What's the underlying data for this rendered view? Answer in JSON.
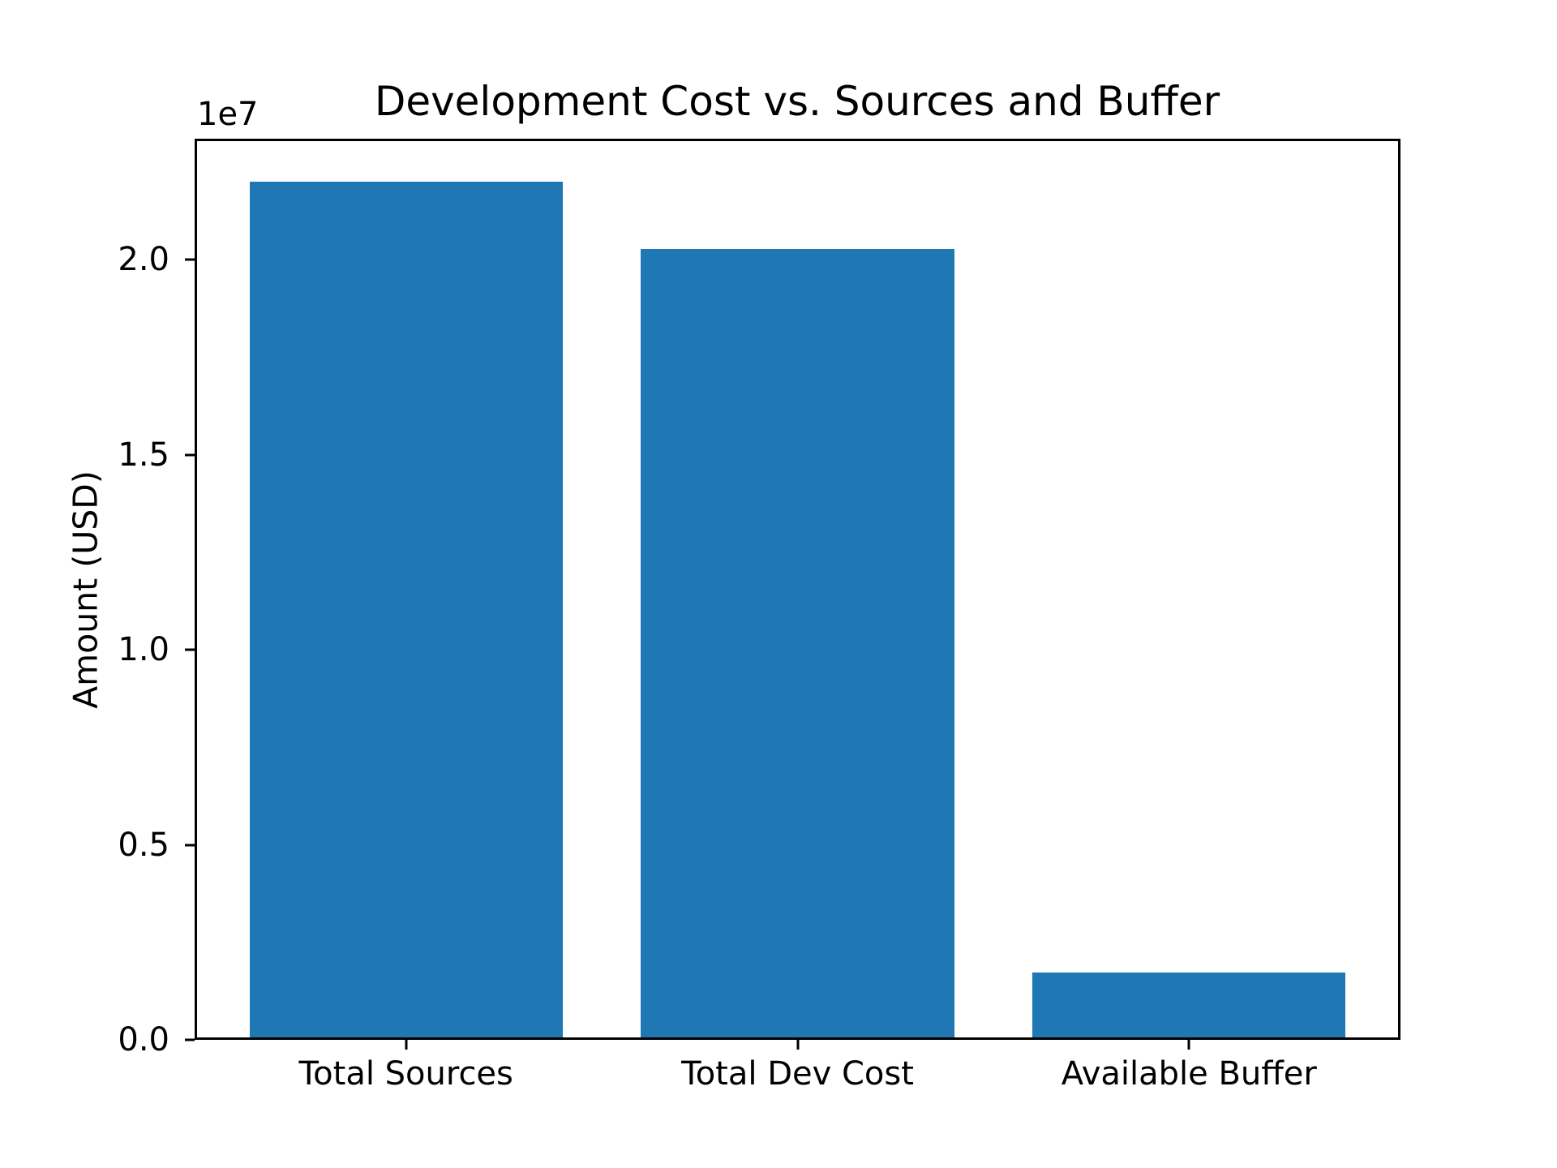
{
  "chart_data": {
    "type": "bar",
    "title": "Development Cost vs. Sources and Buffer",
    "ylabel": "Amount (USD)",
    "xlabel": "",
    "offset_text": "1e7",
    "categories": [
      "Total Sources",
      "Total Dev Cost",
      "Available Buffer"
    ],
    "values": [
      22000000,
      20270000,
      1730000
    ],
    "bar_color": "#1f77b4",
    "bar_width": 0.8,
    "ylim": [
      0,
      23100000
    ],
    "xlim": [
      -0.54,
      2.54
    ],
    "y_ticks": [
      0,
      5000000,
      10000000,
      15000000,
      20000000
    ],
    "y_tick_labels": [
      "0.0",
      "0.5",
      "1.0",
      "1.5",
      "2.0"
    ],
    "grid": false,
    "legend": null,
    "text_color": "#000000",
    "spine_color": "#000000",
    "background_color": "#ffffff"
  }
}
